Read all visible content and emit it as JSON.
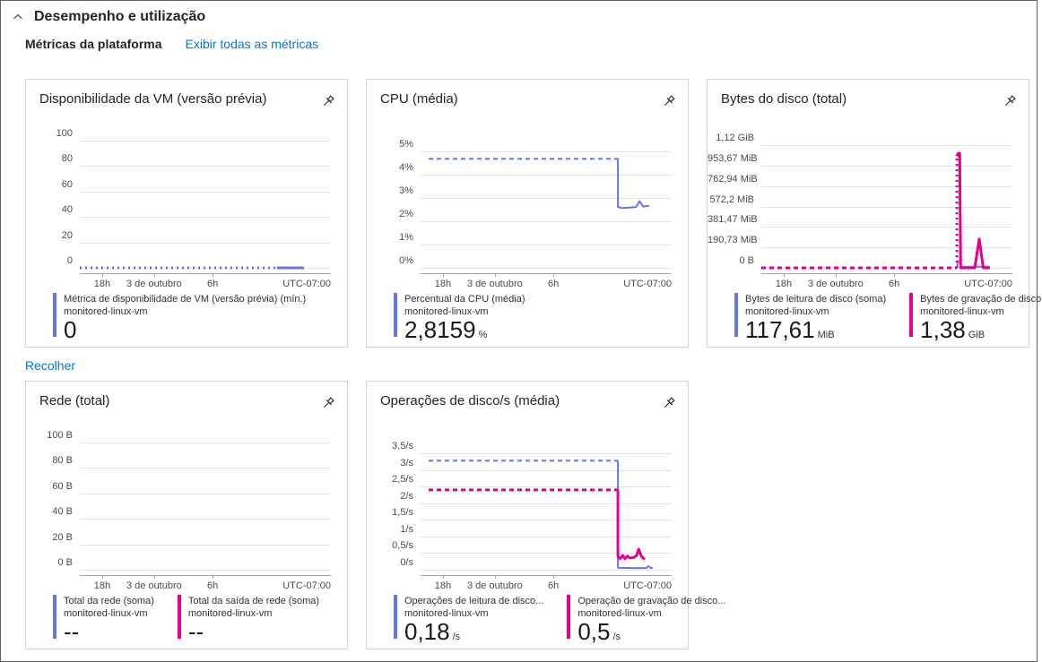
{
  "page": {
    "section_title": "Desempenho e utilização",
    "metrics_label": "Métricas da plataforma",
    "show_all_link": "Exibir todas as métricas",
    "collapse_link": "Recolher"
  },
  "colors": {
    "blue": "#6577e8",
    "pink": "#e3008c",
    "link": "#0078d4"
  },
  "x_axis": {
    "ticks": [
      {
        "label": "18h",
        "pos": 0.089
      },
      {
        "label": "3 de outubro",
        "pos": 0.296
      },
      {
        "label": "6h",
        "pos": 0.529
      }
    ],
    "timezone": "UTC-07:00"
  },
  "chart_data": [
    {
      "type": "line",
      "title": "Disponibilidade da VM (versão prévia)",
      "y_ticks": [
        "100",
        "80",
        "60",
        "40",
        "20",
        "0"
      ],
      "ymax": 100,
      "plot_top": 68,
      "series": [
        {
          "name": "Métrica de disponibilidade de VM (versão prévia) (mín.)",
          "color": "blue",
          "width": 3,
          "segments": [
            {
              "dash": "2 4",
              "points": [
                [
                  0.0,
                  0
                ],
                [
                  0.785,
                  0
                ]
              ]
            },
            {
              "dash": null,
              "points": [
                [
                  0.785,
                  0
                ],
                [
                  0.893,
                  0
                ]
              ]
            }
          ]
        }
      ],
      "legends": [
        {
          "color": "blue",
          "label": "Métrica de disponibilidade de VM (versão prévia) (mín.)",
          "resource": "monitored-linux-vm",
          "value": "0",
          "unit": ""
        }
      ]
    },
    {
      "type": "line",
      "title": "CPU (média)",
      "y_ticks": [
        "5%",
        "4%",
        "3%",
        "2%",
        "1%",
        "0%"
      ],
      "ymax": 5,
      "plot_top": 80,
      "series": [
        {
          "name": "Percentual da CPU (média)",
          "color": "blue",
          "width": 2,
          "segments": [
            {
              "dash": "5 4",
              "points": [
                [
                  0.032,
                  4.68
                ],
                [
                  0.786,
                  4.68
                ]
              ]
            },
            {
              "dash": null,
              "points": [
                [
                  0.786,
                  4.68
                ],
                [
                  0.786,
                  2.62
                ],
                [
                  0.8,
                  2.57
                ],
                [
                  0.83,
                  2.59
                ],
                [
                  0.858,
                  2.61
                ],
                [
                  0.872,
                  2.86
                ],
                [
                  0.886,
                  2.63
                ],
                [
                  0.91,
                  2.67
                ]
              ]
            }
          ]
        }
      ],
      "legends": [
        {
          "color": "blue",
          "label": "Percentual da CPU (média)",
          "resource": "monitored-linux-vm",
          "value": "2,8159",
          "unit": "%"
        }
      ]
    },
    {
      "type": "line",
      "title": "Bytes do disco (total)",
      "y_ticks": [
        "1,12 GiB",
        "953,67 MiB",
        "762,94 MiB",
        "572,2 MiB",
        "381,47 MiB",
        "190,73 MiB",
        "0 B"
      ],
      "ymax": 1144.4,
      "plot_top": 73,
      "series": [
        {
          "name": "Bytes de leitura de disco (soma)",
          "color": "blue",
          "width": 2,
          "segments": [
            {
              "dash": null,
              "points": [
                [
                  0.779,
                  0
                ],
                [
                  0.783,
                  62
                ],
                [
                  0.79,
                  62
                ],
                [
                  0.796,
                  10
                ],
                [
                  0.91,
                  10
                ]
              ]
            }
          ]
        },
        {
          "name": "Bytes de gravação de disco (soma)",
          "color": "pink",
          "width": 3,
          "segments": [
            {
              "dash": "5 4",
              "points": [
                [
                  0.0,
                  0
                ],
                [
                  0.779,
                  0
                ]
              ]
            },
            {
              "dash": "2 4",
              "points": [
                [
                  0.779,
                  0
                ],
                [
                  0.779,
                  1040
                ]
              ]
            },
            {
              "dash": null,
              "points": [
                [
                  0.779,
                  1040
                ],
                [
                  0.784,
                  1068
                ],
                [
                  0.79,
                  1068
                ],
                [
                  0.794,
                  0
                ],
                [
                  0.85,
                  0
                ],
                [
                  0.868,
                  268
                ],
                [
                  0.884,
                  0
                ],
                [
                  0.91,
                  0
                ]
              ]
            }
          ]
        }
      ],
      "legends": [
        {
          "color": "blue",
          "label": "Bytes de leitura de disco (soma)",
          "resource": "monitored-linux-vm",
          "value": "117,61",
          "unit": "MiB"
        },
        {
          "color": "pink",
          "label": "Bytes de gravação de disco (soma)",
          "resource": "monitored-linux-vm",
          "value": "1,38",
          "unit": "GiB"
        }
      ]
    },
    {
      "type": "line",
      "title": "Rede (total)",
      "y_ticks": [
        "100 B",
        "80 B",
        "60 B",
        "40 B",
        "20 B",
        "0 B"
      ],
      "ymax": 100,
      "plot_top": 68,
      "series": [],
      "legends": [
        {
          "color": "blue",
          "label": "Total da rede (soma)",
          "resource": "monitored-linux-vm",
          "value": "--",
          "unit": ""
        },
        {
          "color": "pink",
          "label": "Total da saída de rede (soma)",
          "resource": "monitored-linux-vm",
          "value": "--",
          "unit": ""
        }
      ]
    },
    {
      "type": "line",
      "title": "Operações de disco/s (média)",
      "y_ticks": [
        "3,5/s",
        "3/s",
        "2,5/s",
        "2/s",
        "1,5/s",
        "1/s",
        "0,5/s",
        "0/s"
      ],
      "ymax": 3.5,
      "plot_top": 80,
      "series": [
        {
          "name": "Operações de leitura de disco...",
          "color": "blue",
          "width": 2,
          "segments": [
            {
              "dash": "5 4",
              "points": [
                [
                  0.032,
                  3.28
                ],
                [
                  0.786,
                  3.28
                ]
              ]
            },
            {
              "dash": null,
              "points": [
                [
                  0.786,
                  3.28
                ],
                [
                  0.786,
                  0.06
                ],
                [
                  0.85,
                  0.05
                ],
                [
                  0.9,
                  0.05
                ],
                [
                  0.908,
                  0.11
                ],
                [
                  0.918,
                  0.05
                ],
                [
                  0.925,
                  0.06
                ]
              ]
            }
          ]
        },
        {
          "name": "Operação de gravação de disco...",
          "color": "pink",
          "width": 3,
          "segments": [
            {
              "dash": "5 4",
              "points": [
                [
                  0.032,
                  2.4
                ],
                [
                  0.786,
                  2.4
                ]
              ]
            },
            {
              "dash": null,
              "points": [
                [
                  0.786,
                  2.4
                ],
                [
                  0.786,
                  0.4
                ],
                [
                  0.795,
                  0.33
                ],
                [
                  0.805,
                  0.43
                ],
                [
                  0.814,
                  0.33
                ],
                [
                  0.824,
                  0.41
                ],
                [
                  0.834,
                  0.35
                ],
                [
                  0.848,
                  0.37
                ],
                [
                  0.86,
                  0.42
                ],
                [
                  0.869,
                  0.62
                ],
                [
                  0.88,
                  0.4
                ],
                [
                  0.893,
                  0.31
                ]
              ]
            }
          ]
        }
      ],
      "legends": [
        {
          "color": "blue",
          "label": "Operações de leitura de disco...",
          "resource": "monitored-linux-vm",
          "value": "0,18",
          "unit": "/s"
        },
        {
          "color": "pink",
          "label": "Operação de gravação de disco...",
          "resource": "monitored-linux-vm",
          "value": "0,5",
          "unit": "/s"
        }
      ]
    }
  ]
}
